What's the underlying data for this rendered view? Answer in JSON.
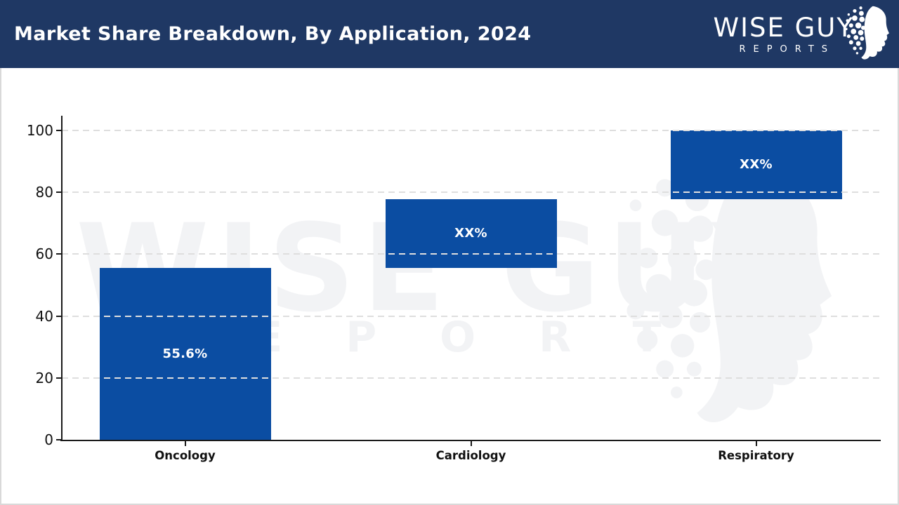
{
  "header": {
    "title": "Market Share Breakdown, By Application, 2024",
    "logo": {
      "wordmark": "WISE GUY",
      "sub_wordmark": "REPORTS"
    }
  },
  "watermark": {
    "wordmark": "WISE GUY",
    "sub_wordmark": "REPORTS"
  },
  "chart_data": {
    "type": "bar",
    "subtype": "stacked-waterfall-floating-bars",
    "title": "Market Share Breakdown, By Application, 2024",
    "categories": [
      "Oncology",
      "Cardiology",
      "Respiratory"
    ],
    "segments": [
      {
        "category": "Oncology",
        "start": 0,
        "end": 55.6,
        "value": 55.6,
        "label": "55.6%"
      },
      {
        "category": "Cardiology",
        "start": 55.6,
        "end": 77.8,
        "value": 22.2,
        "label": "XX%"
      },
      {
        "category": "Respiratory",
        "start": 77.8,
        "end": 100,
        "value": 22.2,
        "label": "XX%"
      }
    ],
    "y_ticks": [
      0,
      20,
      40,
      60,
      80,
      100
    ],
    "ylim": [
      0,
      104.8
    ],
    "xlabel": "",
    "ylabel": "",
    "grid": "horizontal-dashed",
    "legend": "none",
    "bar_color": "#0b4da2",
    "bar_label_color": "#ffffff",
    "axis_color": "#1a1a1a",
    "grid_color": "#dedede"
  },
  "colors": {
    "header_bg": "#1f3864",
    "content_bg": "#ffffff",
    "content_border": "#d9d9d9",
    "watermark": "#f2f3f5"
  }
}
